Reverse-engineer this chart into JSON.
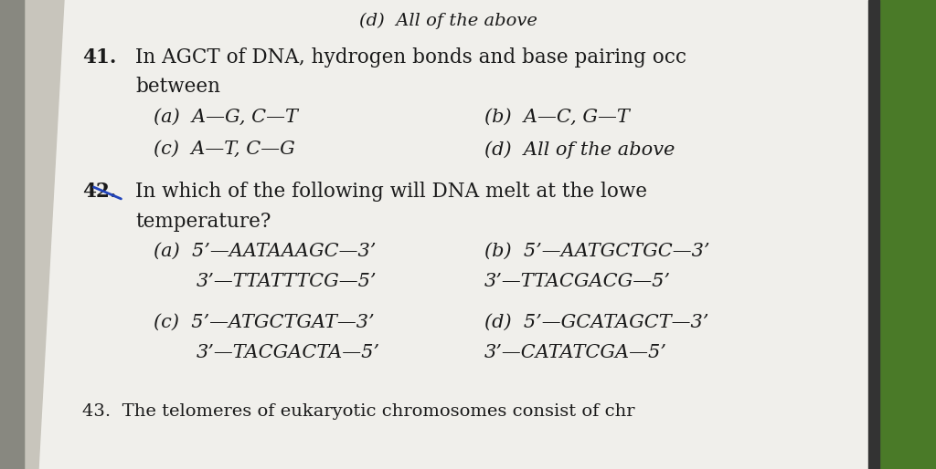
{
  "page_bg": "#d8d4cc",
  "text_color": "#1a1a1a",
  "prev_item": "(d)  All of the above",
  "q41_num": "41.",
  "q41_text": "In AGCT of DNA, hydrogen bonds and base pairing occ",
  "q41_text2": "between",
  "q41_a": "(a)  A—G, C—T",
  "q41_b": "(b)  A—C, G—T",
  "q41_c": "(c)  A—T, C—G",
  "q41_d": "(d)  All of the above",
  "q42_num": "42.",
  "q42_text": "In which of the following will DNA melt at the lowe",
  "q42_text2": "temperature?",
  "q42_a1": "(a)  5’—AATAAAGC—3’",
  "q42_b1": "(b)  5’—AATGCTGC—3’",
  "q42_a2": "3’—TTATTTCG—5’",
  "q42_b2": "3’—TTACGACG—5’",
  "q42_c1": "(c)  5’—ATGCTGAT—3’",
  "q42_d1": "(d)  5’—GCATAGCT—3’",
  "q42_c2": "3’—TACGACTA—5’",
  "q42_d2": "3’—CATATCGA—5’",
  "q43_text": "43.  The telomeres of eukaryotic chromosomes consist of chr",
  "font_size_main": 15.5,
  "font_size_opt": 15,
  "font_size_small": 14,
  "green_color": "#4a7a28",
  "shadow_color": "#555555",
  "page_white": "#f0efeb"
}
